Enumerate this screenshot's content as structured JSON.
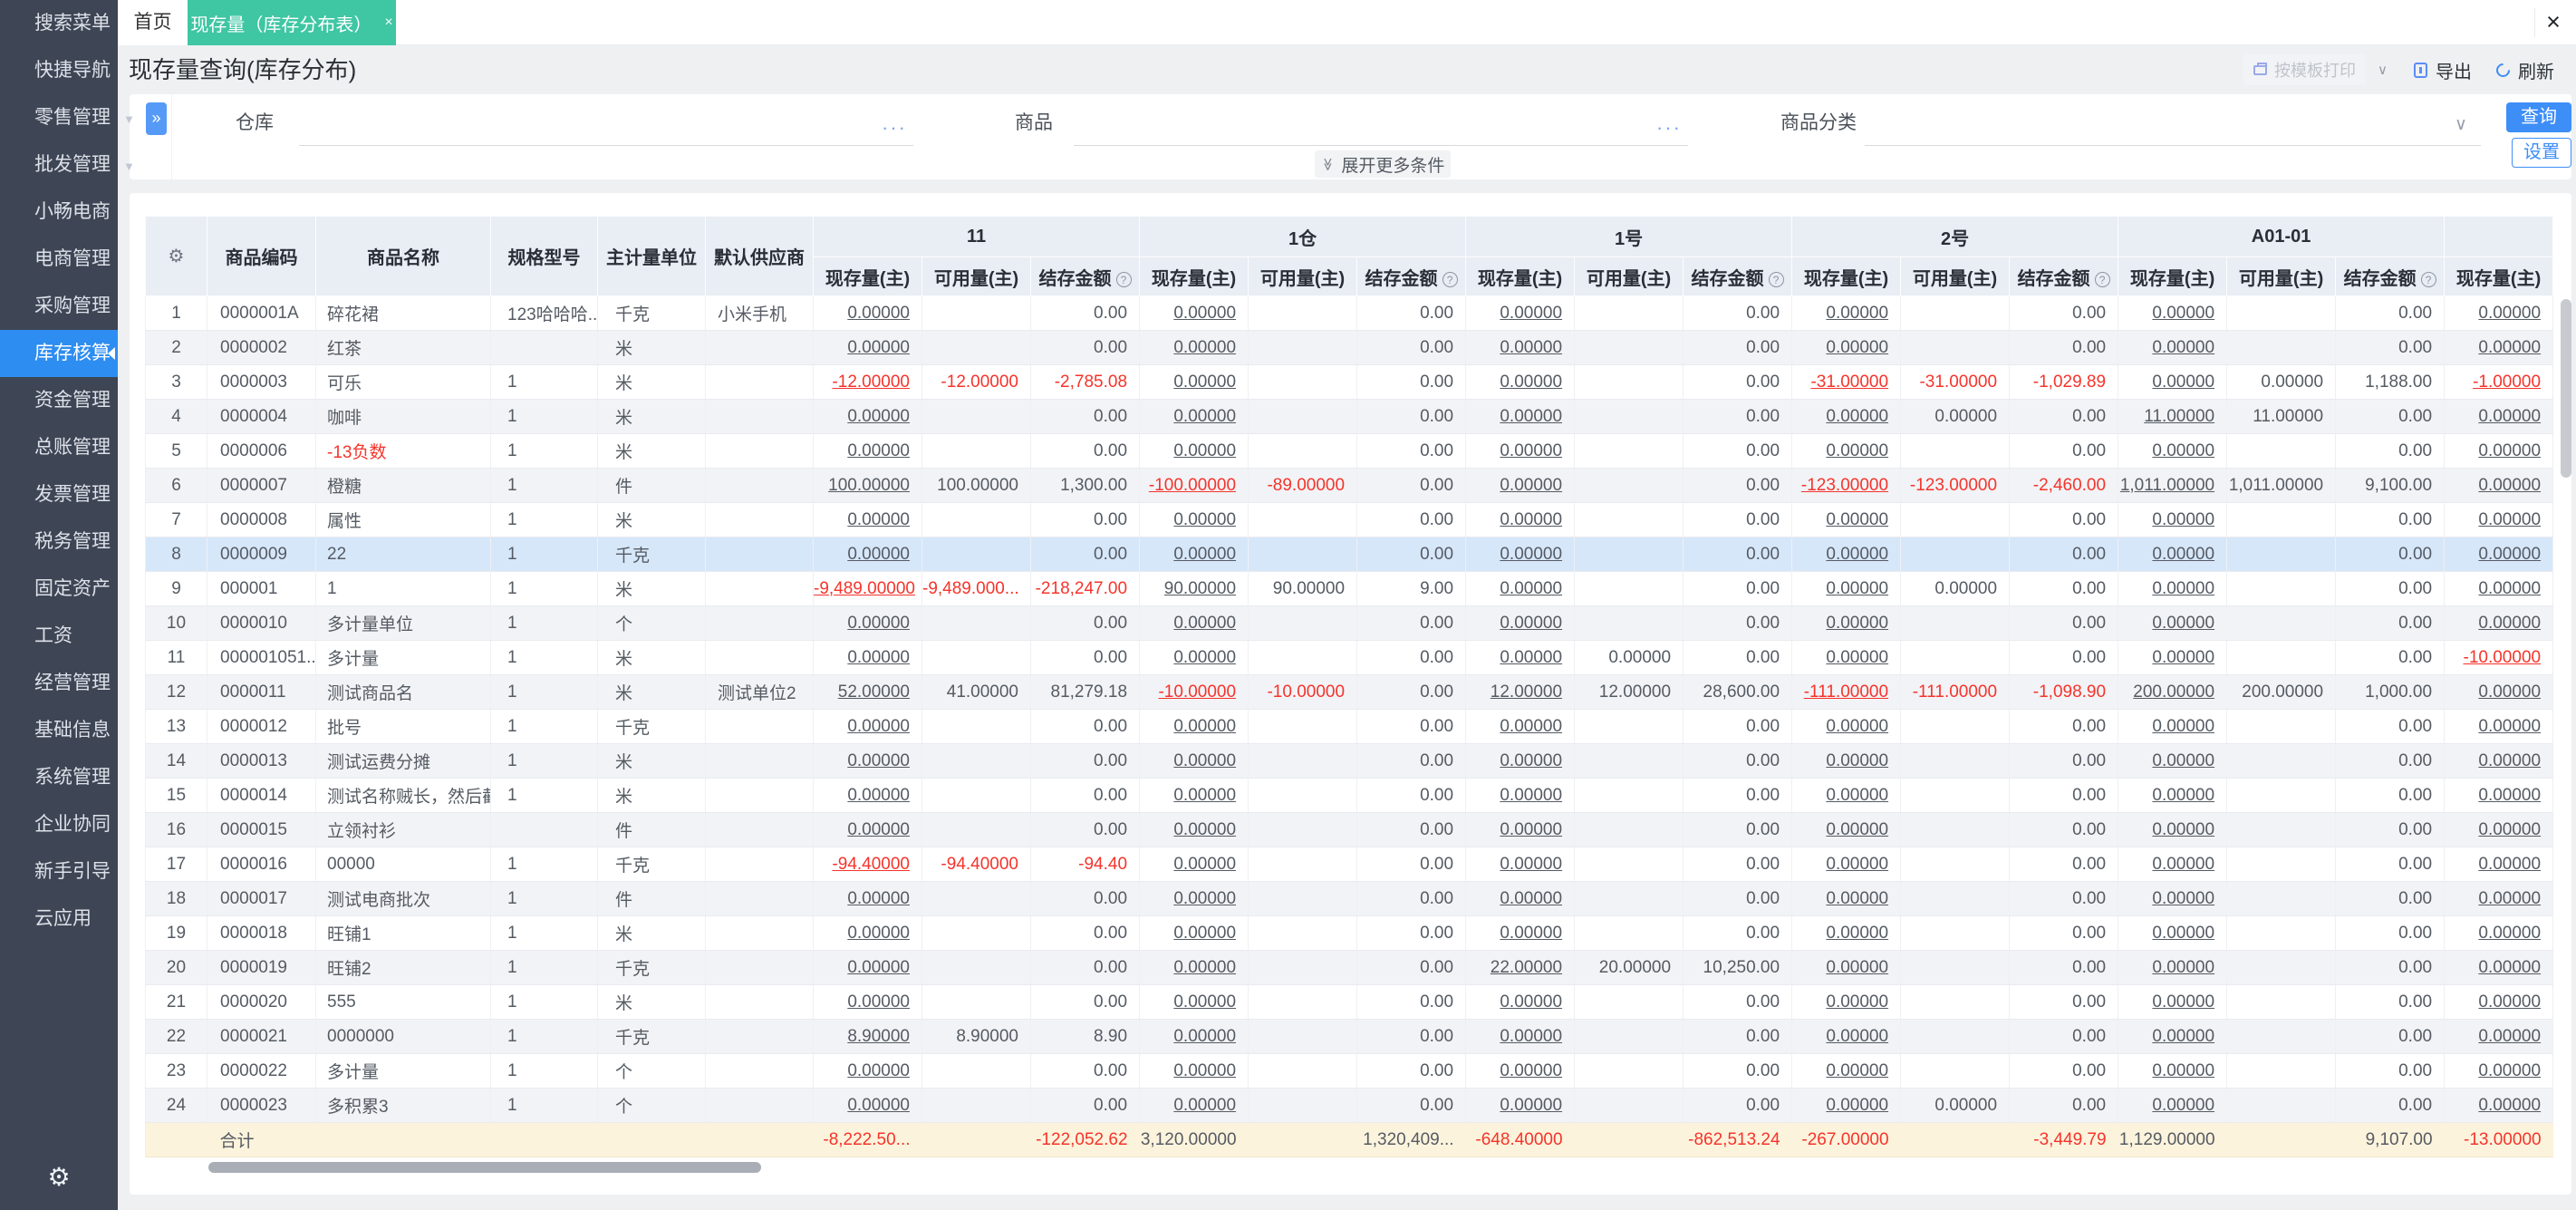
{
  "sidebar": {
    "items": [
      {
        "label": "搜索菜单"
      },
      {
        "label": "快捷导航"
      },
      {
        "label": "零售管理",
        "caret": true
      },
      {
        "label": "批发管理",
        "caret": true
      },
      {
        "label": "小畅电商"
      },
      {
        "label": "电商管理"
      },
      {
        "label": "采购管理"
      },
      {
        "label": "库存核算",
        "active": true
      },
      {
        "label": "资金管理"
      },
      {
        "label": "总账管理"
      },
      {
        "label": "发票管理"
      },
      {
        "label": "税务管理"
      },
      {
        "label": "固定资产"
      },
      {
        "label": "工资"
      },
      {
        "label": "经营管理"
      },
      {
        "label": "基础信息"
      },
      {
        "label": "系统管理"
      },
      {
        "label": "企业协同"
      },
      {
        "label": "新手引导"
      },
      {
        "label": "云应用"
      }
    ],
    "footer_icon": "gear-icon"
  },
  "tabs": {
    "home": "首页",
    "active": "现存量（库存分布表）",
    "close": "×"
  },
  "window": {
    "close": "×"
  },
  "page": {
    "title": "现存量查询(库存分布)"
  },
  "toolbar": {
    "print": "按模板打印",
    "print_caret": "∨",
    "export": "导出",
    "refresh": "刷新"
  },
  "filters": {
    "collapse": "»",
    "warehouse_label": "仓库",
    "product_label": "商品",
    "category_label": "商品分类",
    "ellipsis": "···",
    "category_caret": "∨",
    "expand_icon": "≫",
    "expand_label": "展开更多条件",
    "search_label": "查询",
    "settings_label": "设置"
  },
  "table": {
    "cell_format": "prefix before ':' -> u=underlined link, r=red; plain string = normal; empty = blank cell",
    "fixed_headers": [
      "商品编码",
      "商品名称",
      "规格型号",
      "主计量单位",
      "默认供应商"
    ],
    "group_headers": [
      "11",
      "1仓",
      "1号",
      "2号",
      "A01-01",
      ""
    ],
    "sub_headers": [
      "现存量(主)",
      "可用量(主)",
      "结存金额"
    ],
    "total_label": "合计",
    "rows": [
      {
        "no": 1,
        "code": "0000001A",
        "name": "碎花裙",
        "spec": "123哈哈哈...",
        "unit": "千克",
        "sup": "小米手机",
        "c": [
          "u:0.00000",
          "",
          "0.00",
          "u:0.00000",
          "",
          "0.00",
          "u:0.00000",
          "",
          "0.00",
          "u:0.00000",
          "",
          "0.00",
          "u:0.00000",
          "",
          "0.00",
          "u:0.00000"
        ]
      },
      {
        "no": 2,
        "code": "0000002",
        "name": "红茶",
        "spec": "",
        "unit": "米",
        "sup": "",
        "c": [
          "u:0.00000",
          "",
          "0.00",
          "u:0.00000",
          "",
          "0.00",
          "u:0.00000",
          "",
          "0.00",
          "u:0.00000",
          "",
          "0.00",
          "u:0.00000",
          "",
          "0.00",
          "u:0.00000"
        ]
      },
      {
        "no": 3,
        "code": "0000003",
        "name": "可乐",
        "spec": "1",
        "unit": "米",
        "sup": "",
        "c": [
          "ru:-12.00000",
          "r:-12.00000",
          "r:-2,785.08",
          "u:0.00000",
          "",
          "0.00",
          "u:0.00000",
          "",
          "0.00",
          "ru:-31.00000",
          "r:-31.00000",
          "r:-1,029.89",
          "u:0.00000",
          "0.00000",
          "1,188.00",
          "ru:-1.00000"
        ]
      },
      {
        "no": 4,
        "code": "0000004",
        "name": "咖啡",
        "spec": "1",
        "unit": "米",
        "sup": "",
        "c": [
          "u:0.00000",
          "",
          "0.00",
          "u:0.00000",
          "",
          "0.00",
          "u:0.00000",
          "",
          "0.00",
          "u:0.00000",
          "0.00000",
          "0.00",
          "u:11.00000",
          "11.00000",
          "0.00",
          "u:0.00000"
        ]
      },
      {
        "no": 5,
        "code": "0000006",
        "name": "-13负数",
        "name_red": true,
        "spec": "1",
        "unit": "米",
        "sup": "",
        "c": [
          "u:0.00000",
          "",
          "0.00",
          "u:0.00000",
          "",
          "0.00",
          "u:0.00000",
          "",
          "0.00",
          "u:0.00000",
          "",
          "0.00",
          "u:0.00000",
          "",
          "0.00",
          "u:0.00000"
        ]
      },
      {
        "no": 6,
        "code": "0000007",
        "name": "橙糖",
        "spec": "1",
        "unit": "件",
        "sup": "",
        "c": [
          "u:100.00000",
          "100.00000",
          "1,300.00",
          "ru:-100.00000",
          "r:-89.00000",
          "0.00",
          "u:0.00000",
          "",
          "0.00",
          "ru:-123.00000",
          "r:-123.00000",
          "r:-2,460.00",
          "u:1,011.00000",
          "1,011.00000",
          "9,100.00",
          "u:0.00000"
        ]
      },
      {
        "no": 7,
        "code": "0000008",
        "name": "属性",
        "spec": "1",
        "unit": "米",
        "sup": "",
        "c": [
          "u:0.00000",
          "",
          "0.00",
          "u:0.00000",
          "",
          "0.00",
          "u:0.00000",
          "",
          "0.00",
          "u:0.00000",
          "",
          "0.00",
          "u:0.00000",
          "",
          "0.00",
          "u:0.00000"
        ]
      },
      {
        "no": 8,
        "code": "0000009",
        "name": "22",
        "spec": "1",
        "unit": "千克",
        "sup": "",
        "hl": true,
        "c": [
          "u:0.00000",
          "",
          "0.00",
          "u:0.00000",
          "",
          "0.00",
          "u:0.00000",
          "",
          "0.00",
          "u:0.00000",
          "",
          "0.00",
          "u:0.00000",
          "",
          "0.00",
          "u:0.00000"
        ]
      },
      {
        "no": 9,
        "code": "000001",
        "name": "1",
        "spec": "1",
        "unit": "米",
        "sup": "",
        "c": [
          "ru:-9,489.00000",
          "r:-9,489.000...",
          "r:-218,247.00",
          "u:90.00000",
          "90.00000",
          "9.00",
          "u:0.00000",
          "",
          "0.00",
          "u:0.00000",
          "0.00000",
          "0.00",
          "u:0.00000",
          "",
          "0.00",
          "u:0.00000"
        ]
      },
      {
        "no": 10,
        "code": "0000010",
        "name": "多计量单位",
        "spec": "1",
        "unit": "个",
        "sup": "",
        "c": [
          "u:0.00000",
          "",
          "0.00",
          "u:0.00000",
          "",
          "0.00",
          "u:0.00000",
          "",
          "0.00",
          "u:0.00000",
          "",
          "0.00",
          "u:0.00000",
          "",
          "0.00",
          "u:0.00000"
        ]
      },
      {
        "no": 11,
        "code": "000001051...",
        "name": "多计量",
        "spec": "1",
        "unit": "米",
        "sup": "",
        "c": [
          "u:0.00000",
          "",
          "0.00",
          "u:0.00000",
          "",
          "0.00",
          "u:0.00000",
          "0.00000",
          "0.00",
          "u:0.00000",
          "",
          "0.00",
          "u:0.00000",
          "",
          "0.00",
          "ru:-10.00000"
        ]
      },
      {
        "no": 12,
        "code": "0000011",
        "name": "测试商品名",
        "spec": "1",
        "unit": "米",
        "sup": "测试单位2",
        "c": [
          "u:52.00000",
          "41.00000",
          "81,279.18",
          "ru:-10.00000",
          "r:-10.00000",
          "0.00",
          "u:12.00000",
          "12.00000",
          "28,600.00",
          "ru:-111.00000",
          "r:-111.00000",
          "r:-1,098.90",
          "u:200.00000",
          "200.00000",
          "1,000.00",
          "u:0.00000"
        ]
      },
      {
        "no": 13,
        "code": "0000012",
        "name": "批号",
        "spec": "1",
        "unit": "千克",
        "sup": "",
        "c": [
          "u:0.00000",
          "",
          "0.00",
          "u:0.00000",
          "",
          "0.00",
          "u:0.00000",
          "",
          "0.00",
          "u:0.00000",
          "",
          "0.00",
          "u:0.00000",
          "",
          "0.00",
          "u:0.00000"
        ]
      },
      {
        "no": 14,
        "code": "0000013",
        "name": "测试运费分摊",
        "spec": "1",
        "unit": "米",
        "sup": "",
        "c": [
          "u:0.00000",
          "",
          "0.00",
          "u:0.00000",
          "",
          "0.00",
          "u:0.00000",
          "",
          "0.00",
          "u:0.00000",
          "",
          "0.00",
          "u:0.00000",
          "",
          "0.00",
          "u:0.00000"
        ]
      },
      {
        "no": 15,
        "code": "0000014",
        "name": "测试名称贼长，然后截...",
        "spec": "1",
        "unit": "米",
        "sup": "",
        "c": [
          "u:0.00000",
          "",
          "0.00",
          "u:0.00000",
          "",
          "0.00",
          "u:0.00000",
          "",
          "0.00",
          "u:0.00000",
          "",
          "0.00",
          "u:0.00000",
          "",
          "0.00",
          "u:0.00000"
        ]
      },
      {
        "no": 16,
        "code": "0000015",
        "name": "立领衬衫",
        "spec": "",
        "unit": "件",
        "sup": "",
        "c": [
          "u:0.00000",
          "",
          "0.00",
          "u:0.00000",
          "",
          "0.00",
          "u:0.00000",
          "",
          "0.00",
          "u:0.00000",
          "",
          "0.00",
          "u:0.00000",
          "",
          "0.00",
          "u:0.00000"
        ]
      },
      {
        "no": 17,
        "code": "0000016",
        "name": "00000",
        "spec": "1",
        "unit": "千克",
        "sup": "",
        "c": [
          "ru:-94.40000",
          "r:-94.40000",
          "r:-94.40",
          "u:0.00000",
          "",
          "0.00",
          "u:0.00000",
          "",
          "0.00",
          "u:0.00000",
          "",
          "0.00",
          "u:0.00000",
          "",
          "0.00",
          "u:0.00000"
        ]
      },
      {
        "no": 18,
        "code": "0000017",
        "name": "测试电商批次",
        "spec": "1",
        "unit": "件",
        "sup": "",
        "c": [
          "u:0.00000",
          "",
          "0.00",
          "u:0.00000",
          "",
          "0.00",
          "u:0.00000",
          "",
          "0.00",
          "u:0.00000",
          "",
          "0.00",
          "u:0.00000",
          "",
          "0.00",
          "u:0.00000"
        ]
      },
      {
        "no": 19,
        "code": "0000018",
        "name": "旺铺1",
        "spec": "1",
        "unit": "米",
        "sup": "",
        "c": [
          "u:0.00000",
          "",
          "0.00",
          "u:0.00000",
          "",
          "0.00",
          "u:0.00000",
          "",
          "0.00",
          "u:0.00000",
          "",
          "0.00",
          "u:0.00000",
          "",
          "0.00",
          "u:0.00000"
        ]
      },
      {
        "no": 20,
        "code": "0000019",
        "name": "旺铺2",
        "spec": "1",
        "unit": "千克",
        "sup": "",
        "c": [
          "u:0.00000",
          "",
          "0.00",
          "u:0.00000",
          "",
          "0.00",
          "u:22.00000",
          "20.00000",
          "10,250.00",
          "u:0.00000",
          "",
          "0.00",
          "u:0.00000",
          "",
          "0.00",
          "u:0.00000"
        ]
      },
      {
        "no": 21,
        "code": "0000020",
        "name": "555",
        "spec": "1",
        "unit": "米",
        "sup": "",
        "c": [
          "u:0.00000",
          "",
          "0.00",
          "u:0.00000",
          "",
          "0.00",
          "u:0.00000",
          "",
          "0.00",
          "u:0.00000",
          "",
          "0.00",
          "u:0.00000",
          "",
          "0.00",
          "u:0.00000"
        ]
      },
      {
        "no": 22,
        "code": "0000021",
        "name": "0000000",
        "spec": "1",
        "unit": "千克",
        "sup": "",
        "c": [
          "u:8.90000",
          "8.90000",
          "8.90",
          "u:0.00000",
          "",
          "0.00",
          "u:0.00000",
          "",
          "0.00",
          "u:0.00000",
          "",
          "0.00",
          "u:0.00000",
          "",
          "0.00",
          "u:0.00000"
        ]
      },
      {
        "no": 23,
        "code": "0000022",
        "name": "多计量",
        "spec": "1",
        "unit": "个",
        "sup": "",
        "c": [
          "u:0.00000",
          "",
          "0.00",
          "u:0.00000",
          "",
          "0.00",
          "u:0.00000",
          "",
          "0.00",
          "u:0.00000",
          "",
          "0.00",
          "u:0.00000",
          "",
          "0.00",
          "u:0.00000"
        ]
      },
      {
        "no": 24,
        "code": "0000023",
        "name": "多积累3",
        "spec": "1",
        "unit": "个",
        "sup": "",
        "c": [
          "u:0.00000",
          "",
          "0.00",
          "u:0.00000",
          "",
          "0.00",
          "u:0.00000",
          "",
          "0.00",
          "u:0.00000",
          "0.00000",
          "0.00",
          "u:0.00000",
          "",
          "0.00",
          "u:0.00000"
        ]
      }
    ],
    "totals": [
      "r:-8,222.50...",
      "",
      "r:-122,052.62",
      "3,120.00000",
      "",
      "1,320,409...",
      "r:-648.40000",
      "",
      "r:-862,513.24",
      "r:-267.00000",
      "",
      "r:-3,449.79",
      "1,129.00000",
      "",
      "9,107.00",
      "r:-13.00000"
    ]
  }
}
